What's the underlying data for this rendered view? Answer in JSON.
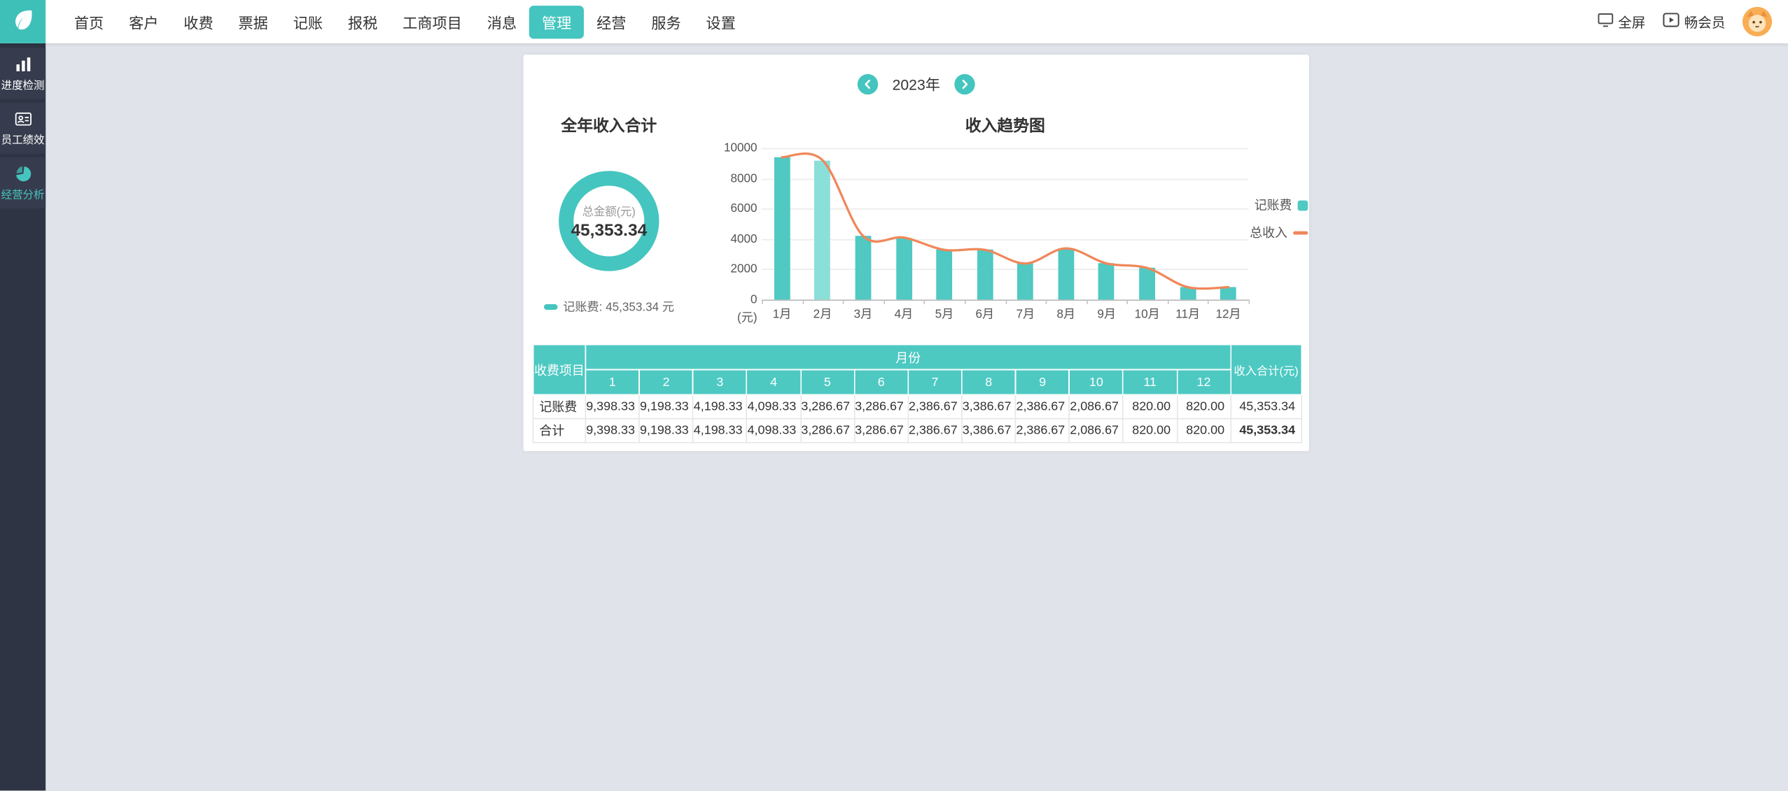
{
  "topnav": {
    "items": [
      {
        "id": "home",
        "label": "首页"
      },
      {
        "id": "customers",
        "label": "客户"
      },
      {
        "id": "fees",
        "label": "收费"
      },
      {
        "id": "invoices",
        "label": "票据"
      },
      {
        "id": "bookkeeping",
        "label": "记账"
      },
      {
        "id": "tax-filing",
        "label": "报税"
      },
      {
        "id": "business-projects",
        "label": "工商项目"
      },
      {
        "id": "messages",
        "label": "消息"
      },
      {
        "id": "management",
        "label": "管理",
        "active": true
      },
      {
        "id": "operations",
        "label": "经营"
      },
      {
        "id": "services",
        "label": "服务"
      },
      {
        "id": "settings",
        "label": "设置"
      }
    ],
    "right": {
      "fullscreen_label": "全屏",
      "member_label": "畅会员"
    }
  },
  "sidebar": {
    "items": [
      {
        "id": "progress-monitor",
        "label": "进度检测",
        "icon": "bar-chart-icon"
      },
      {
        "id": "staff-performance",
        "label": "员工绩效",
        "icon": "id-card-icon"
      },
      {
        "id": "business-analysis",
        "label": "经营分析",
        "icon": "pie-chart-icon",
        "active": true
      }
    ]
  },
  "year_nav": {
    "year": "2023年"
  },
  "summary": {
    "title": "全年收入合计",
    "donut_label": "总金额(元)",
    "donut_value": "45,353.34",
    "legend_text": "记账费: 45,353.34 元"
  },
  "chart_data": {
    "type": "bar",
    "title": "收入趋势图",
    "categories": [
      "1月",
      "2月",
      "3月",
      "4月",
      "5月",
      "6月",
      "7月",
      "8月",
      "9月",
      "10月",
      "11月",
      "12月"
    ],
    "series": [
      {
        "name": "记账费",
        "type": "bar",
        "values": [
          9398.33,
          9198.33,
          4198.33,
          4098.33,
          3286.67,
          3286.67,
          2386.67,
          3386.67,
          2386.67,
          2086.67,
          820,
          820
        ]
      },
      {
        "name": "总收入",
        "type": "line",
        "values": [
          9398.33,
          9198.33,
          4198.33,
          4098.33,
          3286.67,
          3286.67,
          2386.67,
          3386.67,
          2386.67,
          2086.67,
          820,
          820
        ]
      }
    ],
    "ylim": [
      0,
      10000
    ],
    "yticks": [
      0,
      2000,
      4000,
      6000,
      8000,
      10000
    ],
    "y_unit": "(元)",
    "grid": true,
    "legend_position": "right",
    "highlight_bar_index": 1
  },
  "table": {
    "corner_header": "收费项目",
    "group_header": "月份",
    "total_header": "收入合计(元)",
    "month_headers": [
      "1",
      "2",
      "3",
      "4",
      "5",
      "6",
      "7",
      "8",
      "9",
      "10",
      "11",
      "12"
    ],
    "rows": [
      {
        "project": "记账费",
        "values": [
          "9,398.33",
          "9,198.33",
          "4,198.33",
          "4,098.33",
          "3,286.67",
          "3,286.67",
          "2,386.67",
          "3,386.67",
          "2,386.67",
          "2,086.67",
          "820.00",
          "820.00"
        ],
        "total": "45,353.34",
        "bold": false
      },
      {
        "project": "合计",
        "values": [
          "9,398.33",
          "9,198.33",
          "4,198.33",
          "4,098.33",
          "3,286.67",
          "3,286.67",
          "2,386.67",
          "3,386.67",
          "2,386.67",
          "2,086.67",
          "820.00",
          "820.00"
        ],
        "total": "45,353.34",
        "bold": true
      }
    ]
  },
  "colors": {
    "accent": "#45c5bf",
    "bar": "#4fc9c2",
    "bar_highlight": "#8adfd9",
    "line": "#f0875a",
    "table_header": "#4dc9c2",
    "sidebar_bg": "#2e3444",
    "page_bg": "#e0e4ea"
  }
}
